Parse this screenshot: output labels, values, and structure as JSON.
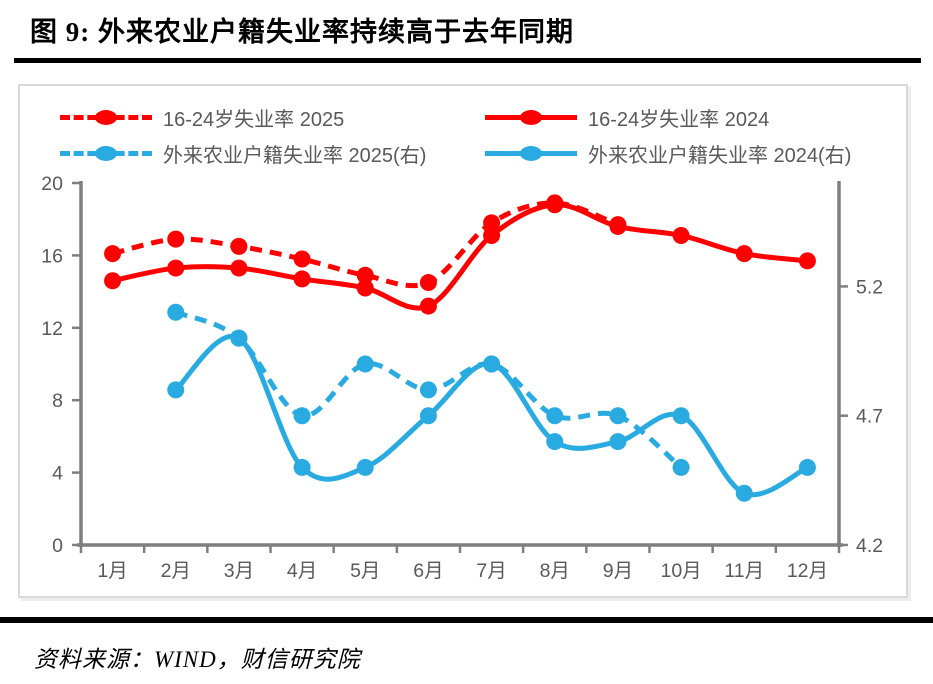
{
  "title": "图 9:  外来农业户籍失业率持续高于去年同期",
  "source": "资料来源：WIND，财信研究院",
  "colors": {
    "red_series": "#ff0000",
    "blue_series": "#29abe2",
    "axis": "#7f7f7f",
    "tick_label": "#595959",
    "legend_text": "#595959",
    "panel_border": "#d9d9d9",
    "rule": "#000000"
  },
  "legend": [
    {
      "label": "16-24岁失业率 2025",
      "color": "red",
      "style": "dashed"
    },
    {
      "label": "16-24岁失业率 2024",
      "color": "red",
      "style": "solid"
    },
    {
      "label": "外来农业户籍失业率 2025(右)",
      "color": "blue",
      "style": "dashed"
    },
    {
      "label": "外来农业户籍失业率 2024(右)",
      "color": "blue",
      "style": "solid"
    }
  ],
  "chart_data": {
    "type": "line",
    "categories": [
      "1月",
      "2月",
      "3月",
      "4月",
      "5月",
      "6月",
      "7月",
      "8月",
      "9月",
      "10月",
      "11月",
      "12月"
    ],
    "left_axis": {
      "range": [
        0,
        20
      ],
      "ticks": [
        0,
        4,
        8,
        12,
        16,
        20
      ],
      "tick_labels": [
        "0",
        "4",
        "8",
        "12",
        "16",
        "20"
      ]
    },
    "right_axis": {
      "range": [
        4.2,
        5.6
      ],
      "ticks": [
        4.2,
        4.7,
        5.2
      ],
      "tick_labels": [
        "4.2",
        "4.7",
        "5.2"
      ]
    },
    "grid": false,
    "legend_position": "top",
    "series": [
      {
        "name": "16-24岁失业率 2025",
        "axis": "left",
        "style": "dashed",
        "color": "#ff0000",
        "start_month": 1,
        "values": [
          16.1,
          16.9,
          16.5,
          15.8,
          14.9,
          14.5,
          17.8,
          18.9,
          17.7
        ]
      },
      {
        "name": "16-24岁失业率 2024",
        "axis": "left",
        "style": "solid",
        "color": "#ff0000",
        "start_month": 1,
        "values": [
          14.6,
          15.3,
          15.3,
          14.7,
          14.2,
          13.2,
          17.1,
          18.8,
          17.6,
          17.1,
          16.1,
          15.7
        ]
      },
      {
        "name": "外来农业户籍失业率 2025(右)",
        "axis": "right",
        "style": "dashed",
        "color": "#29abe2",
        "start_month": 2,
        "values": [
          5.1,
          5.0,
          4.7,
          4.9,
          4.8,
          4.9,
          4.7,
          4.7,
          4.5
        ]
      },
      {
        "name": "外来农业户籍失业率 2024(右)",
        "axis": "right",
        "style": "solid",
        "color": "#29abe2",
        "start_month": 2,
        "values": [
          4.8,
          5.0,
          4.5,
          4.5,
          4.7,
          4.9,
          4.6,
          4.6,
          4.7,
          4.4,
          4.5
        ]
      }
    ]
  }
}
